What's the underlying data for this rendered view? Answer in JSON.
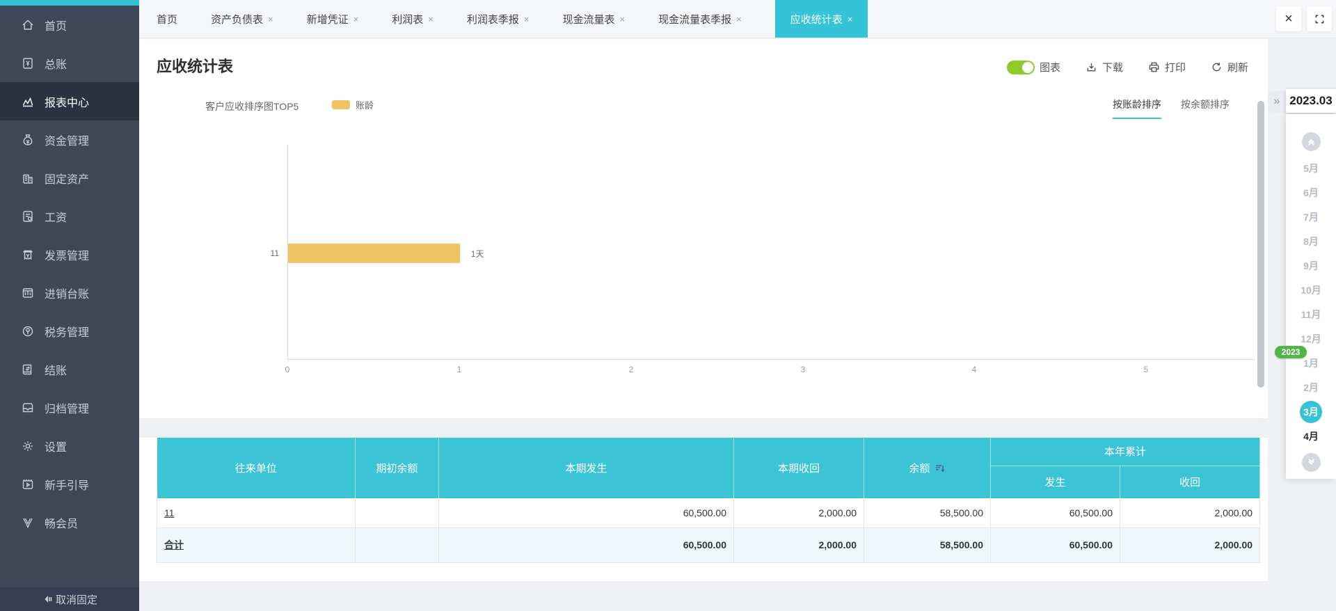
{
  "colors": {
    "accent_cyan": "#35c3d7",
    "bar_yellow": "#f0c561",
    "toggle_green": "#8ecb2a",
    "badge_green": "#52b54b",
    "sidebar_bg": "#3f4759",
    "table_header": "#3bc3d6"
  },
  "sidebar": {
    "items": [
      {
        "label": "首页"
      },
      {
        "label": "总账"
      },
      {
        "label": "报表中心"
      },
      {
        "label": "资金管理"
      },
      {
        "label": "固定资产"
      },
      {
        "label": "工资"
      },
      {
        "label": "发票管理"
      },
      {
        "label": "进销台账"
      },
      {
        "label": "税务管理"
      },
      {
        "label": "结账"
      },
      {
        "label": "归档管理"
      },
      {
        "label": "设置"
      },
      {
        "label": "新手引导"
      },
      {
        "label": "畅会员"
      }
    ],
    "active_index": 2,
    "unpin_label": "取消固定"
  },
  "tabs": {
    "close_glyph": "×",
    "items": [
      {
        "label": "首页",
        "closable": false,
        "active": false
      },
      {
        "label": "资产负债表",
        "closable": true,
        "active": false
      },
      {
        "label": "新增凭证",
        "closable": true,
        "active": false
      },
      {
        "label": "利润表",
        "closable": true,
        "active": false
      },
      {
        "label": "利润表季报",
        "closable": true,
        "active": false
      },
      {
        "label": "现金流量表",
        "closable": true,
        "active": false
      },
      {
        "label": "现金流量表季报",
        "closable": true,
        "active": false
      },
      {
        "label": "应收统计表",
        "closable": true,
        "active": true
      }
    ]
  },
  "ui": {
    "close_glyph": "×",
    "expand_glyph": "»"
  },
  "page": {
    "title": "应收统计表"
  },
  "toolbar": {
    "chart_toggle_label": "图表",
    "chart_toggle_on": true,
    "download_label": "下载",
    "print_label": "打印",
    "refresh_label": "刷新"
  },
  "sorting": {
    "by_age": "按账龄排序",
    "by_balance": "按余额排序",
    "active": "by_age"
  },
  "chart_data": {
    "type": "bar",
    "orientation": "horizontal",
    "title": "客户应收排序图TOP5",
    "legend": [
      "账龄"
    ],
    "categories": [
      "11"
    ],
    "values": [
      1
    ],
    "value_labels": [
      "1天"
    ],
    "unit": "天",
    "xlim": [
      0,
      5
    ],
    "xticks": [
      0,
      1,
      2,
      3,
      4,
      5
    ],
    "bar_color": "#f0c561",
    "grid": false,
    "legend_position": "top"
  },
  "period": {
    "current": "2023.03",
    "year_badge": "2023",
    "months": [
      "5月",
      "6月",
      "7月",
      "8月",
      "9月",
      "10月",
      "11月",
      "12月",
      "1月",
      "2月",
      "3月",
      "4月"
    ],
    "selected_index": 10
  },
  "table": {
    "headers": {
      "unit": "往来单位",
      "opening": "期初余额",
      "incurred": "本期发生",
      "received": "本期收回",
      "balance": "余额",
      "year_group": "本年累计",
      "year_incurred": "发生",
      "year_received": "收回"
    },
    "rows": [
      {
        "unit": "11",
        "opening": "",
        "incurred": "60,500.00",
        "received": "2,000.00",
        "balance": "58,500.00",
        "year_incurred": "60,500.00",
        "year_received": "2,000.00"
      }
    ],
    "total": {
      "unit": "合计",
      "opening": "",
      "incurred": "60,500.00",
      "received": "2,000.00",
      "balance": "58,500.00",
      "year_incurred": "60,500.00",
      "year_received": "2,000.00"
    }
  }
}
